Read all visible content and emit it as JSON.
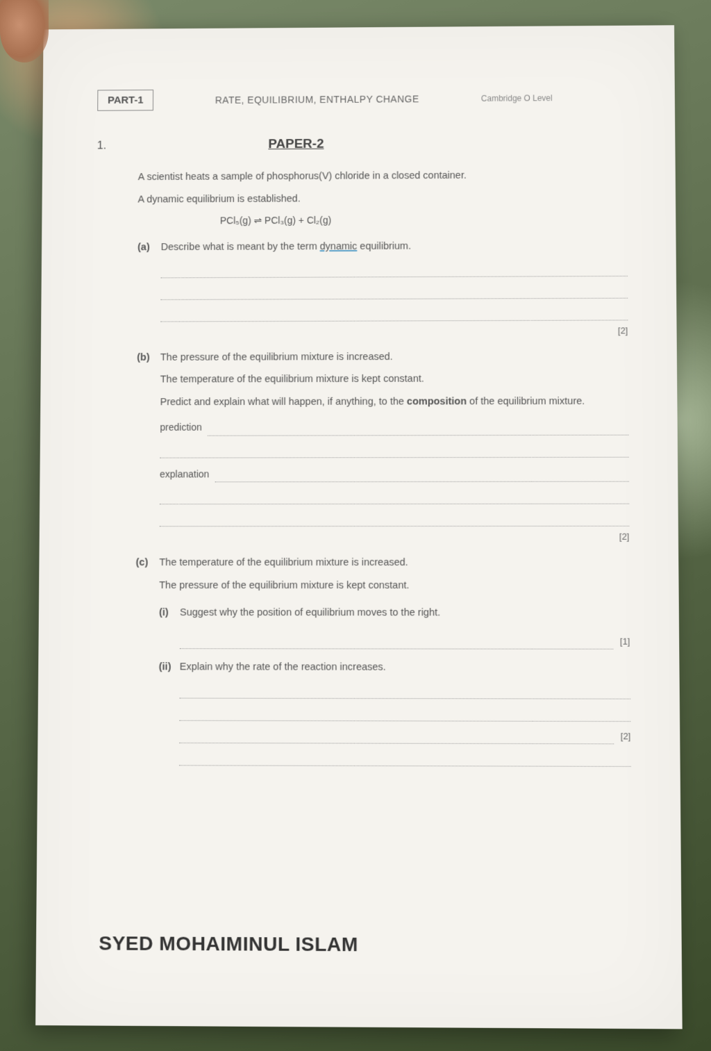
{
  "header": {
    "part": "PART-1",
    "subject": "RATE, EQUILIBRIUM, ENTHALPY CHANGE",
    "level": "Cambridge O Level"
  },
  "question_number": "1.",
  "paper_title": "PAPER-2",
  "intro": {
    "line1": "A scientist heats a sample of phosphorus(V) chloride in a closed container.",
    "line2": "A dynamic equilibrium is established.",
    "equation": "PCl₅(g)  ⇌  PCl₃(g)  +  Cl₂(g)"
  },
  "parts": {
    "a": {
      "label": "(a)",
      "text_before": "Describe what is meant by the term ",
      "underlined": "dynamic",
      "text_after": " equilibrium.",
      "marks": "[2]"
    },
    "b": {
      "label": "(b)",
      "line1": "The pressure of the equilibrium mixture is increased.",
      "line2": "The temperature of the equilibrium mixture is kept constant.",
      "line3_before": "Predict and explain what will happen, if anything, to the ",
      "line3_bold": "composition",
      "line3_after": " of the equilibrium mixture.",
      "prediction_label": "prediction",
      "explanation_label": "explanation",
      "marks": "[2]"
    },
    "c": {
      "label": "(c)",
      "line1": "The temperature of the equilibrium mixture is increased.",
      "line2": "The pressure of the equilibrium mixture is kept constant.",
      "i": {
        "label": "(i)",
        "text": "Suggest why the position of equilibrium moves to the right.",
        "marks": "[1]"
      },
      "ii": {
        "label": "(ii)",
        "text": "Explain why the rate of the reaction increases.",
        "marks": "[2]"
      }
    }
  },
  "footer_name": "SYED MOHAIMINUL ISLAM"
}
